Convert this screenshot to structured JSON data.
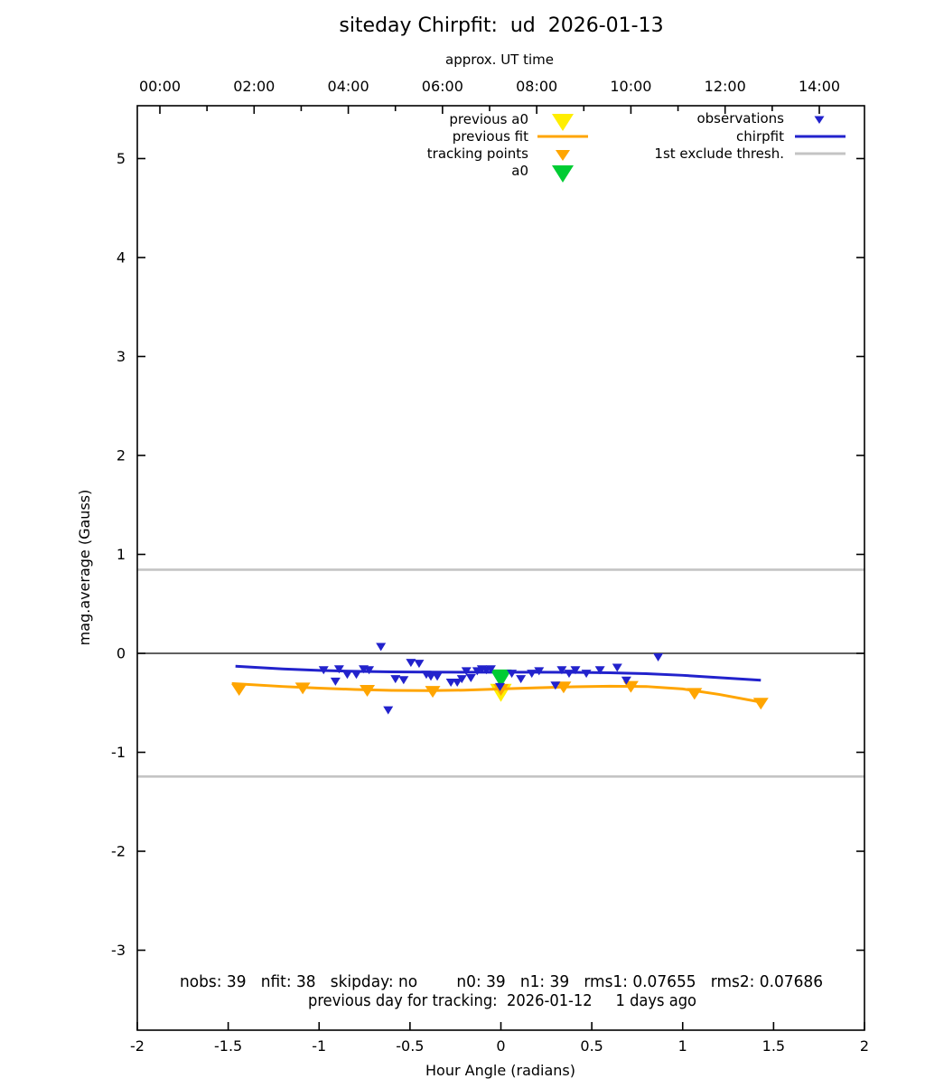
{
  "title": "siteday Chirpfit:  ud  2026-01-13",
  "colors": {
    "observations": "#2222cc",
    "chirpfit": "#2222cc",
    "previous_fit": "#ffa500",
    "tracking_points": "#ffa500",
    "previous_a0": "#ffee00",
    "a0": "#00cc33",
    "exclude_threshold": "#c4c4c4",
    "zero_line": "#000000",
    "border": "#000000"
  },
  "chart_data": {
    "type": "scatter",
    "title": "siteday Chirpfit:  ud  2026-01-13",
    "top_axis_label": "approx. UT time",
    "xlabel": "Hour Angle (radians)",
    "ylabel": "mag.average (Gauss)",
    "x_range": [
      -2,
      2
    ],
    "y_range": [
      -3.808,
      5.534
    ],
    "grid": false,
    "x_ticks": [
      -2,
      -1.5,
      -1,
      -0.5,
      0,
      0.5,
      1,
      1.5,
      2
    ],
    "x_tick_labels": [
      "-2",
      "-1.5",
      "-1",
      "-0.5",
      "0",
      "0.5",
      "1",
      "1.5",
      "2"
    ],
    "y_ticks": [
      -3,
      -2,
      -1,
      0,
      1,
      2,
      3,
      4,
      5
    ],
    "y_tick_labels": [
      "-3",
      "-2",
      "-1",
      "0",
      "1",
      "2",
      "3",
      "4",
      "5"
    ],
    "ut_tick_hours": [
      0,
      1,
      2,
      3,
      4,
      5,
      6,
      7,
      8,
      9,
      10,
      11,
      12,
      13,
      14
    ],
    "ut_label_hours": [
      0,
      2,
      4,
      6,
      8,
      10,
      12,
      14
    ],
    "ut_labels": [
      "00:00",
      "02:00",
      "04:00",
      "06:00",
      "08:00",
      "10:00",
      "12:00",
      "14:00"
    ],
    "zero_line_y": 0,
    "exclude_thresholds": [
      0.845,
      -1.245
    ],
    "series": [
      {
        "name": "observations",
        "type": "points",
        "marker": "triangle-down",
        "size": "small",
        "color_key": "observations",
        "points": [
          [
            -0.975,
            -0.165
          ],
          [
            -0.91,
            -0.28
          ],
          [
            -0.89,
            -0.155
          ],
          [
            -0.845,
            -0.21
          ],
          [
            -0.795,
            -0.21
          ],
          [
            -0.755,
            -0.155
          ],
          [
            -0.725,
            -0.165
          ],
          [
            -0.66,
            0.07
          ],
          [
            -0.62,
            -0.57
          ],
          [
            -0.58,
            -0.255
          ],
          [
            -0.535,
            -0.265
          ],
          [
            -0.495,
            -0.09
          ],
          [
            -0.45,
            -0.1
          ],
          [
            -0.41,
            -0.21
          ],
          [
            -0.385,
            -0.23
          ],
          [
            -0.35,
            -0.23
          ],
          [
            -0.275,
            -0.29
          ],
          [
            -0.24,
            -0.29
          ],
          [
            -0.215,
            -0.255
          ],
          [
            -0.19,
            -0.175
          ],
          [
            -0.165,
            -0.245
          ],
          [
            -0.13,
            -0.175
          ],
          [
            -0.105,
            -0.155
          ],
          [
            -0.08,
            -0.165
          ],
          [
            -0.055,
            -0.155
          ],
          [
            -0.005,
            -0.335
          ],
          [
            0.06,
            -0.2
          ],
          [
            0.11,
            -0.255
          ],
          [
            0.17,
            -0.2
          ],
          [
            0.21,
            -0.175
          ],
          [
            0.3,
            -0.32
          ],
          [
            0.335,
            -0.165
          ],
          [
            0.375,
            -0.2
          ],
          [
            0.41,
            -0.165
          ],
          [
            0.47,
            -0.2
          ],
          [
            0.545,
            -0.165
          ],
          [
            0.64,
            -0.14
          ],
          [
            0.69,
            -0.27
          ],
          [
            0.865,
            -0.035
          ]
        ]
      },
      {
        "name": "chirpfit",
        "type": "line",
        "color_key": "chirpfit",
        "points": [
          [
            -1.46,
            -0.13
          ],
          [
            -1.2,
            -0.158
          ],
          [
            -1.0,
            -0.172
          ],
          [
            -0.8,
            -0.182
          ],
          [
            -0.6,
            -0.187
          ],
          [
            -0.4,
            -0.19
          ],
          [
            -0.2,
            -0.191
          ],
          [
            0,
            -0.191
          ],
          [
            0.2,
            -0.191
          ],
          [
            0.4,
            -0.192
          ],
          [
            0.6,
            -0.196
          ],
          [
            0.8,
            -0.205
          ],
          [
            1.0,
            -0.222
          ],
          [
            1.2,
            -0.245
          ],
          [
            1.43,
            -0.272
          ]
        ]
      },
      {
        "name": "previous fit",
        "type": "line",
        "color_key": "previous_fit",
        "points": [
          [
            -1.48,
            -0.305
          ],
          [
            -1.2,
            -0.335
          ],
          [
            -1.0,
            -0.352
          ],
          [
            -0.8,
            -0.365
          ],
          [
            -0.6,
            -0.374
          ],
          [
            -0.4,
            -0.377
          ],
          [
            -0.2,
            -0.372
          ],
          [
            0,
            -0.36
          ],
          [
            0.2,
            -0.348
          ],
          [
            0.4,
            -0.338
          ],
          [
            0.6,
            -0.332
          ],
          [
            0.8,
            -0.335
          ],
          [
            1.0,
            -0.36
          ],
          [
            1.2,
            -0.415
          ],
          [
            1.45,
            -0.5
          ]
        ]
      },
      {
        "name": "tracking points",
        "type": "points",
        "marker": "triangle-down",
        "size": "medium",
        "color_key": "tracking_points",
        "points": [
          [
            -1.44,
            -0.36
          ],
          [
            -1.09,
            -0.345
          ],
          [
            -0.735,
            -0.37
          ],
          [
            -0.375,
            -0.38
          ],
          [
            0,
            -0.36
          ],
          [
            0.345,
            -0.335
          ],
          [
            0.715,
            -0.33
          ],
          [
            1.065,
            -0.4
          ],
          [
            1.43,
            -0.5
          ]
        ]
      },
      {
        "name": "previous a0",
        "type": "points",
        "marker": "triangle-down",
        "size": "large",
        "color_key": "previous_a0",
        "points": [
          [
            0,
            -0.385
          ]
        ]
      },
      {
        "name": "a0",
        "type": "points",
        "marker": "triangle-down",
        "size": "large",
        "color_key": "a0",
        "points": [
          [
            0,
            -0.24
          ]
        ]
      }
    ],
    "legend": {
      "position": "top-inside",
      "left_column": [
        {
          "label": "previous a0",
          "marker": "triangle-large",
          "color_key": "previous_a0"
        },
        {
          "label": "previous fit",
          "marker": "line",
          "color_key": "previous_fit"
        },
        {
          "label": "tracking points",
          "marker": "triangle-medium",
          "color_key": "tracking_points"
        },
        {
          "label": "a0",
          "marker": "triangle-large",
          "color_key": "a0"
        }
      ],
      "right_column": [
        {
          "label": "observations",
          "marker": "triangle-small",
          "color_key": "observations"
        },
        {
          "label": "chirpfit",
          "marker": "line",
          "color_key": "chirpfit"
        },
        {
          "label": "1st exclude thresh.",
          "marker": "line",
          "color_key": "exclude_threshold"
        }
      ]
    }
  },
  "stats": {
    "line1_parts": [
      "nobs: 39",
      "nfit: 38",
      "skipday: no",
      "n0: 39",
      "n1: 39",
      "rms1: 0.07655",
      "rms2: 0.07686"
    ],
    "line2_parts": [
      "previous day for tracking:  2026-01-12",
      "1 days ago"
    ],
    "nobs": "39",
    "nfit": "38",
    "skipday": "no",
    "n0": "39",
    "n1": "39",
    "rms1": "0.07655",
    "rms2": "0.07686",
    "previous_day": "2026-01-12",
    "days_ago": "1 days ago"
  }
}
